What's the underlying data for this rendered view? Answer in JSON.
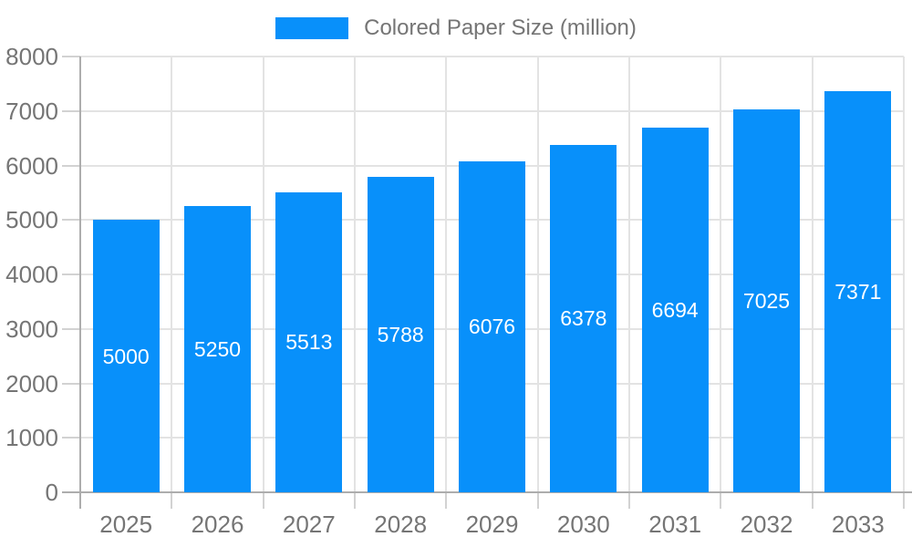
{
  "chart_data": {
    "type": "bar",
    "title": "",
    "legend_entries": [
      "Colored Paper Size (million)"
    ],
    "legend_position": "top",
    "categories": [
      "2025",
      "2026",
      "2027",
      "2028",
      "2029",
      "2030",
      "2031",
      "2032",
      "2033"
    ],
    "series": [
      {
        "name": "Colored Paper Size (million)",
        "values": [
          5000,
          5250,
          5513,
          5788,
          6076,
          6378,
          6694,
          7025,
          7371
        ]
      }
    ],
    "bar_value_labels": [
      "5000",
      "5250",
      "5513",
      "5788",
      "6076",
      "6378",
      "6694",
      "7025",
      "7371"
    ],
    "xlabel": "",
    "ylabel": "",
    "ylim": [
      0,
      8000
    ],
    "ytick_interval": 1000,
    "ytick_labels": [
      "0",
      "1000",
      "2000",
      "3000",
      "4000",
      "5000",
      "6000",
      "7000",
      "8000"
    ],
    "grid": true
  },
  "style": {
    "bar_color": "#0890fa",
    "axis_text_color": "#757575",
    "legend_text_color": "#757575",
    "bar_label_text_color": "#ffffff",
    "gridline_color": "#e3e3e3",
    "axis_line_color": "#adadad",
    "tick_color": "#d2d2d2",
    "background_color": "#ffffff"
  }
}
